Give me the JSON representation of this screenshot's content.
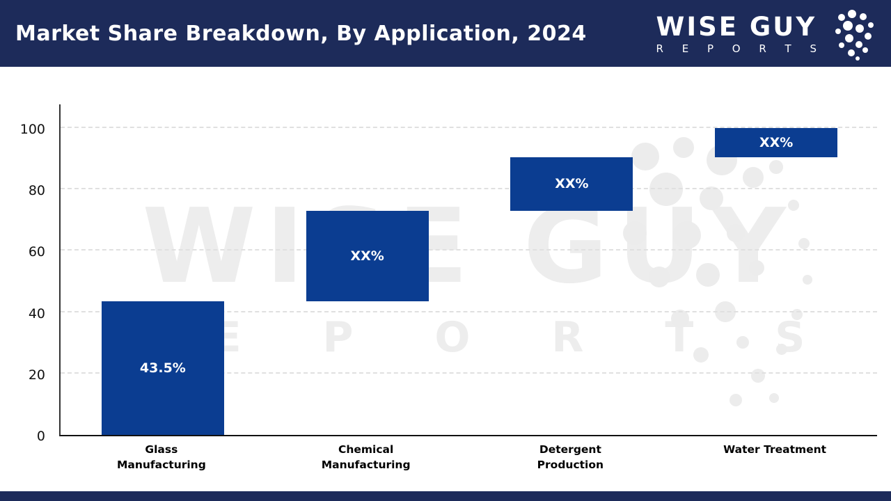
{
  "header": {
    "title": "Market Share Breakdown, By Application, 2024",
    "brand": {
      "line1": "WISE GUY",
      "line2": "R E P O R T S"
    }
  },
  "watermark": {
    "line1": "WISE GUY",
    "line2": "R E P O R T S"
  },
  "colors": {
    "header_bg": "#1d2b5a",
    "bar": "#0b3d91",
    "bar_label": "#ffffff",
    "gridline": "#e0e0e0",
    "watermark": "#ededed"
  },
  "chart_data": {
    "type": "bar",
    "subtype": "waterfall",
    "title": "Market Share Breakdown, By Application, 2024",
    "xlabel": "",
    "ylabel": "",
    "ylim": [
      0,
      100
    ],
    "yticks": [
      0,
      20,
      40,
      60,
      80,
      100
    ],
    "grid": true,
    "legend": false,
    "categories": [
      "Glass Manufacturing",
      "Chemical Manufacturing",
      "Detergent Production",
      "Water Treatment"
    ],
    "category_lines": [
      [
        "Glass",
        "Manufacturing"
      ],
      [
        "Chemical",
        "Manufacturing"
      ],
      [
        "Detergent",
        "Production"
      ],
      [
        "Water Treatment"
      ]
    ],
    "bars": [
      {
        "category": "Glass Manufacturing",
        "start": 0,
        "end": 43.5,
        "label": "43.5%"
      },
      {
        "category": "Chemical Manufacturing",
        "start": 43.5,
        "end": 73,
        "label": "XX%"
      },
      {
        "category": "Detergent Production",
        "start": 73,
        "end": 90.5,
        "label": "XX%"
      },
      {
        "category": "Water Treatment",
        "start": 90.5,
        "end": 100,
        "label": "XX%"
      }
    ]
  }
}
